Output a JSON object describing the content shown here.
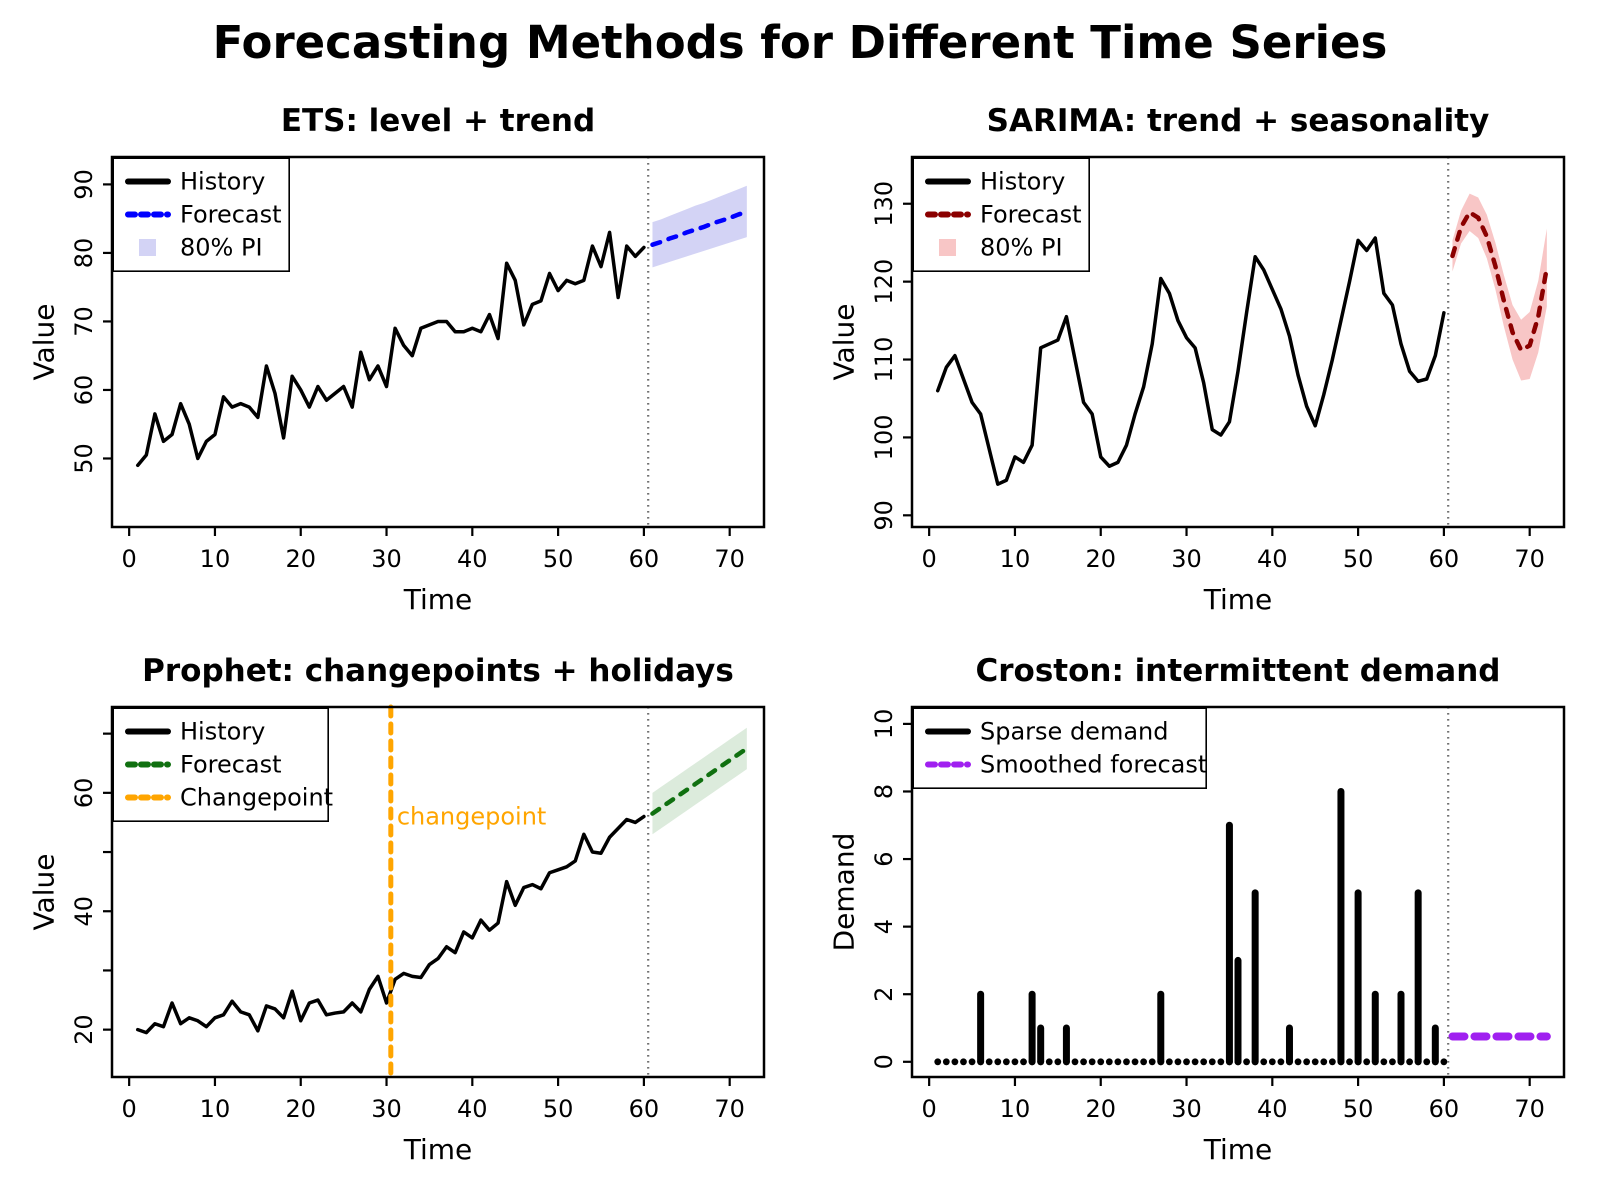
{
  "header": {
    "title": "Forecasting Methods for Different Time Series"
  },
  "colors": {
    "history": "#000000",
    "ets_forecast": "#0000FF",
    "ets_band": "#D3D3F5",
    "sarima_forecast": "#8B0000",
    "sarima_band": "#F8C6C6",
    "prophet_forecast": "#107010",
    "prophet_band": "#DCEBDC",
    "changepoint_orange": "#FFA500",
    "croston_forecast": "#A020F0",
    "separator_gray": "#707070"
  },
  "chart_data": [
    {
      "type": "line",
      "title": "ETS: level + trend",
      "xlabel": "Time",
      "ylabel": "Value",
      "xlim": [
        -2,
        74
      ],
      "ylim": [
        40,
        94
      ],
      "xticks": [
        0,
        10,
        20,
        30,
        40,
        50,
        60,
        70
      ],
      "xtick_labels": [
        "0",
        "10",
        "20",
        "30",
        "40",
        "50",
        "60",
        "70"
      ],
      "yticks": [
        50,
        60,
        70,
        80,
        90
      ],
      "ytick_labels": [
        "50",
        "60",
        "70",
        "80",
        "90"
      ],
      "forecast_start_line": 60.5,
      "series": [
        {
          "name": "80% PI",
          "kind": "band",
          "color": "#D3D3F5",
          "x_start": 61,
          "lower": [
            77.9,
            78.3,
            78.7,
            79.1,
            79.5,
            79.9,
            80.3,
            80.7,
            81.1,
            81.5,
            81.9,
            82.3
          ],
          "upper": [
            84.5,
            84.9,
            85.4,
            85.9,
            86.4,
            86.9,
            87.3,
            87.8,
            88.3,
            88.8,
            89.3,
            89.8
          ]
        },
        {
          "name": "History",
          "kind": "line",
          "color": "#000000",
          "width": 3.5,
          "dash": null,
          "x_start": 1,
          "values": [
            49,
            50.5,
            56.5,
            52.5,
            53.5,
            58,
            55,
            50,
            52.5,
            53.5,
            59,
            57.5,
            58,
            57.5,
            56,
            63.5,
            59.5,
            53,
            62,
            60,
            57.5,
            60.5,
            58.5,
            59.5,
            60.5,
            57.5,
            65.5,
            61.5,
            63.5,
            60.5,
            69,
            66.5,
            65,
            69,
            69.5,
            70,
            70,
            68.5,
            68.5,
            69,
            68.5,
            71,
            67.5,
            78.5,
            76,
            69.5,
            72.5,
            73,
            77,
            74.5,
            76,
            75.5,
            76,
            81,
            78,
            83,
            73.5,
            81,
            79.5,
            80.8
          ]
        },
        {
          "name": "Forecast",
          "kind": "line",
          "color": "#0000FF",
          "width": 4.5,
          "dash": "8 9",
          "x_start": 61,
          "values": [
            81.2,
            81.6,
            82.1,
            82.5,
            83,
            83.4,
            83.8,
            84.3,
            84.7,
            85.1,
            85.6,
            86
          ]
        }
      ],
      "legend": [
        {
          "label": "History",
          "swatch": "line",
          "color": "#000000"
        },
        {
          "label": "Forecast",
          "swatch": "dashed-line",
          "color": "#0000FF"
        },
        {
          "label": "80% PI",
          "swatch": "square",
          "color": "#D3D3F5"
        }
      ]
    },
    {
      "type": "line",
      "title": "SARIMA: trend + seasonality",
      "xlabel": "Time",
      "ylabel": "Value",
      "xlim": [
        -2,
        74
      ],
      "ylim": [
        88.5,
        136
      ],
      "xticks": [
        0,
        10,
        20,
        30,
        40,
        50,
        60,
        70
      ],
      "xtick_labels": [
        "0",
        "10",
        "20",
        "30",
        "40",
        "50",
        "60",
        "70"
      ],
      "yticks": [
        90,
        100,
        110,
        120,
        130
      ],
      "ytick_labels": [
        "90",
        "100",
        "110",
        "120",
        "130"
      ],
      "forecast_start_line": 60.5,
      "series": [
        {
          "name": "80% PI",
          "kind": "band",
          "color": "#F8C6C6",
          "x_start": 61,
          "lower": [
            121.3,
            124.9,
            126.5,
            125.6,
            123,
            119,
            114.2,
            110,
            107.3,
            107.5,
            110.9,
            116.8
          ],
          "upper": [
            125.3,
            129.1,
            131.3,
            130.8,
            128.6,
            125,
            120.8,
            117,
            115.1,
            116.1,
            120.1,
            126.8
          ]
        },
        {
          "name": "History",
          "kind": "line",
          "color": "#000000",
          "width": 3.5,
          "dash": null,
          "x_start": 1,
          "values": [
            106,
            109,
            110.5,
            107.5,
            104.5,
            103,
            98.5,
            94,
            94.5,
            97.5,
            96.8,
            99,
            111.5,
            112,
            112.5,
            115.5,
            110,
            104.5,
            103,
            97.5,
            96.3,
            96.8,
            99,
            103,
            106.5,
            112,
            120.4,
            118.5,
            115,
            112.8,
            111.5,
            107,
            101,
            100.3,
            102,
            108.5,
            116,
            123.2,
            121.5,
            119,
            116.5,
            113,
            108,
            104,
            101.5,
            105.5,
            110,
            115,
            120,
            125.3,
            124,
            125.6,
            118.5,
            117,
            112,
            108.5,
            107.2,
            107.5,
            110.5,
            116
          ]
        },
        {
          "name": "Forecast",
          "kind": "line",
          "color": "#8B0000",
          "width": 4.5,
          "dash": "8 9",
          "x_start": 61,
          "values": [
            123.3,
            127,
            128.9,
            128.2,
            125.8,
            122,
            117.5,
            113.5,
            111.2,
            111.8,
            115.5,
            121.8
          ]
        }
      ],
      "legend": [
        {
          "label": "History",
          "swatch": "line",
          "color": "#000000"
        },
        {
          "label": "Forecast",
          "swatch": "dashed-line",
          "color": "#8B0000"
        },
        {
          "label": "80% PI",
          "swatch": "square",
          "color": "#F8C6C6"
        }
      ]
    },
    {
      "type": "line",
      "title": "Prophet: changepoints + holidays",
      "xlabel": "Time",
      "ylabel": "Value",
      "xlim": [
        -2,
        74
      ],
      "ylim": [
        12,
        74.5
      ],
      "xticks": [
        0,
        10,
        20,
        30,
        40,
        50,
        60,
        70
      ],
      "xtick_labels": [
        "0",
        "10",
        "20",
        "30",
        "40",
        "50",
        "60",
        "70"
      ],
      "yticks": [
        20,
        30,
        40,
        50,
        60,
        70
      ],
      "ytick_labels": [
        "20",
        "",
        "40",
        "",
        "60",
        ""
      ],
      "forecast_start_line": 60.5,
      "annotations": [
        {
          "kind": "vline",
          "x": 30.5,
          "color": "#FFA500",
          "width": 5,
          "dash": "9 8"
        },
        {
          "kind": "text",
          "x": 31.2,
          "y": 56,
          "color": "#FFA500",
          "text": "changepoint"
        }
      ],
      "series": [
        {
          "name": "80% PI",
          "kind": "band",
          "color": "#DCEBDC",
          "x_start": 61,
          "lower": [
            53,
            54,
            55,
            56,
            57,
            58,
            59,
            60,
            61,
            62,
            63,
            64
          ],
          "upper": [
            60,
            61,
            62,
            63,
            64,
            65,
            66,
            67,
            68,
            69,
            70,
            71
          ]
        },
        {
          "name": "History",
          "kind": "line",
          "color": "#000000",
          "width": 3.5,
          "dash": null,
          "x_start": 1,
          "values": [
            20,
            19.5,
            21,
            20.5,
            24.5,
            21,
            22,
            21.5,
            20.5,
            22,
            22.5,
            24.8,
            23,
            22.5,
            19.8,
            24,
            23.5,
            22,
            26.5,
            21.5,
            24.5,
            25,
            22.5,
            22.8,
            23,
            24.5,
            23,
            26.8,
            29,
            24.5,
            28.5,
            29.5,
            29,
            28.8,
            31,
            32,
            34,
            33,
            36.5,
            35.5,
            38.5,
            36.8,
            38,
            45,
            41,
            44,
            44.5,
            43.8,
            46.5,
            47,
            47.5,
            48.5,
            53,
            50,
            49.8,
            52.5,
            54,
            55.5,
            55,
            56
          ]
        },
        {
          "name": "Forecast",
          "kind": "line",
          "color": "#107010",
          "width": 4.5,
          "dash": "8 9",
          "x_start": 61,
          "values": [
            56.5,
            57.5,
            58.5,
            59.5,
            60.5,
            61.5,
            62.5,
            63.5,
            64.5,
            65.5,
            66.5,
            67.5
          ]
        }
      ],
      "legend": [
        {
          "label": "History",
          "swatch": "line",
          "color": "#000000"
        },
        {
          "label": "Forecast",
          "swatch": "dashed-line",
          "color": "#107010"
        },
        {
          "label": "Changepoint",
          "swatch": "dashed-line",
          "color": "#FFA500"
        }
      ]
    },
    {
      "type": "spikes",
      "title": "Croston: intermittent demand",
      "xlabel": "Time",
      "ylabel": "Demand",
      "xlim": [
        -2,
        74
      ],
      "ylim": [
        -0.45,
        10.5
      ],
      "xticks": [
        0,
        10,
        20,
        30,
        40,
        50,
        60,
        70
      ],
      "xtick_labels": [
        "0",
        "10",
        "20",
        "30",
        "40",
        "50",
        "60",
        "70"
      ],
      "yticks": [
        0,
        2,
        4,
        6,
        8,
        10
      ],
      "ytick_labels": [
        "0",
        "2",
        "4",
        "6",
        "8",
        "10"
      ],
      "forecast_start_line": 60.5,
      "series": [
        {
          "name": "Sparse demand",
          "kind": "spikes",
          "color": "#000000",
          "width": 7,
          "x_start": 1,
          "values": [
            0,
            0,
            0,
            0,
            0,
            2,
            0,
            0,
            0,
            0,
            0,
            2,
            1,
            0,
            0,
            1,
            0,
            0,
            0,
            0,
            0,
            0,
            0,
            0,
            0,
            0,
            2,
            0,
            0,
            0,
            0,
            0,
            0,
            0,
            7,
            3,
            0,
            5,
            0,
            0,
            0,
            1,
            0,
            0,
            0,
            0,
            0,
            8,
            0,
            5,
            0,
            2,
            0,
            0,
            2,
            0,
            5,
            0,
            1,
            0
          ]
        },
        {
          "name": "Smoothed forecast",
          "kind": "line",
          "color": "#A020F0",
          "width": 8,
          "dash": "12 10",
          "x_start": 61,
          "values": [
            0.75,
            0.75,
            0.75,
            0.75,
            0.75,
            0.75,
            0.75,
            0.75,
            0.75,
            0.75,
            0.75,
            0.75
          ]
        }
      ],
      "legend": [
        {
          "label": "Sparse demand",
          "swatch": "line",
          "color": "#000000"
        },
        {
          "label": "Smoothed forecast",
          "swatch": "dashed-line",
          "color": "#A020F0"
        }
      ]
    }
  ]
}
